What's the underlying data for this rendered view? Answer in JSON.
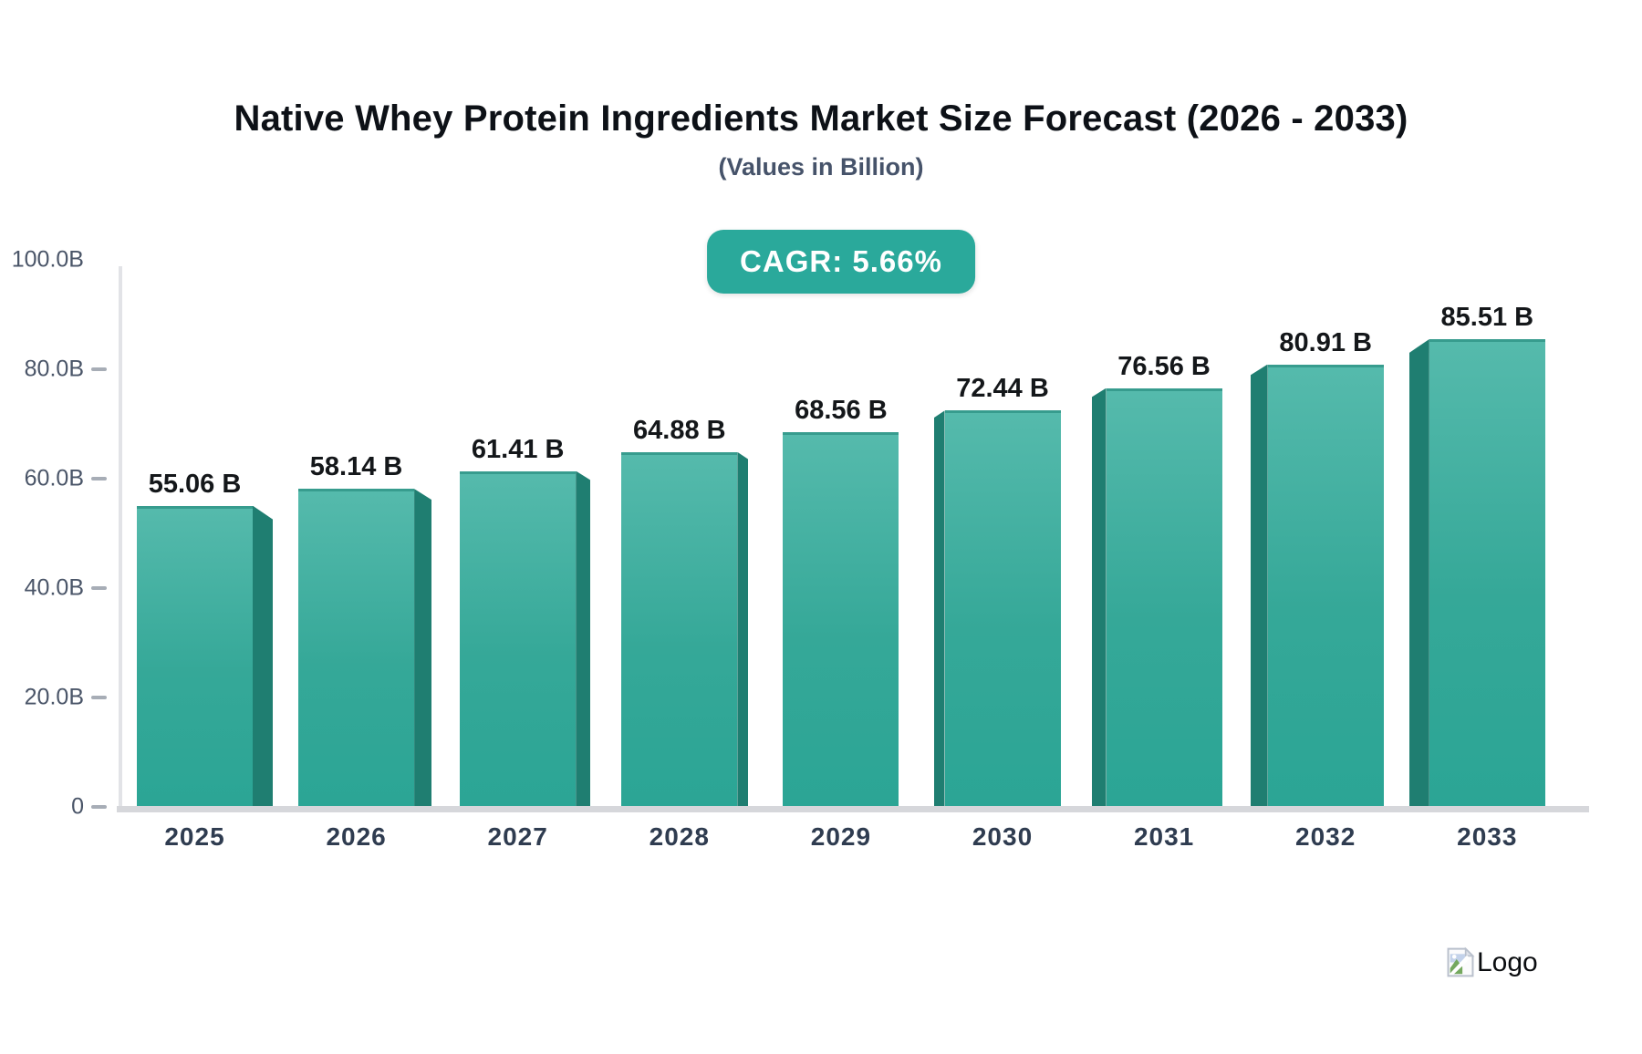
{
  "header": {
    "title": "Native Whey Protein Ingredients Market Size Forecast (2026 - 2033)",
    "subtitle": "(Values in Billion)"
  },
  "badge": {
    "label": "CAGR: 5.66%",
    "bg": "#2aa99b",
    "text_color": "#ffffff"
  },
  "footer": {
    "logo_text": "Logo"
  },
  "chart_data": {
    "type": "bar",
    "title": "Native Whey Protein Ingredients Market Size Forecast (2026 - 2033)",
    "subtitle": "(Values in Billion)",
    "cagr_annotation": "CAGR: 5.66%",
    "categories": [
      "2025",
      "2026",
      "2027",
      "2028",
      "2029",
      "2030",
      "2031",
      "2032",
      "2033"
    ],
    "values": [
      55.06,
      58.14,
      61.41,
      64.88,
      68.56,
      72.44,
      76.56,
      80.91,
      85.51
    ],
    "value_labels": [
      "55.06 B",
      "58.14 B",
      "61.41 B",
      "64.88 B",
      "68.56 B",
      "72.44 B",
      "76.56 B",
      "80.91 B",
      "85.51 B"
    ],
    "unit": "Billion",
    "ylim": [
      0,
      100
    ],
    "yticks": [
      {
        "label": "100.0B",
        "value": 100,
        "dash": false
      },
      {
        "label": "80.0B",
        "value": 80,
        "dash": true
      },
      {
        "label": "60.0B",
        "value": 60,
        "dash": true
      },
      {
        "label": "40.0B",
        "value": 40,
        "dash": true
      },
      {
        "label": "20.0B",
        "value": 20,
        "dash": true
      },
      {
        "label": "0",
        "value": 0,
        "dash": true
      }
    ],
    "grid": false,
    "legend": "none",
    "colors": {
      "bar_front_top": "#55baac",
      "bar_front_bottom": "#2ba595",
      "bar_side": "#1f7e71",
      "axis_line": "#e2e3e7",
      "baseline": "#d6d7db",
      "accent": "#2aa99b"
    }
  }
}
